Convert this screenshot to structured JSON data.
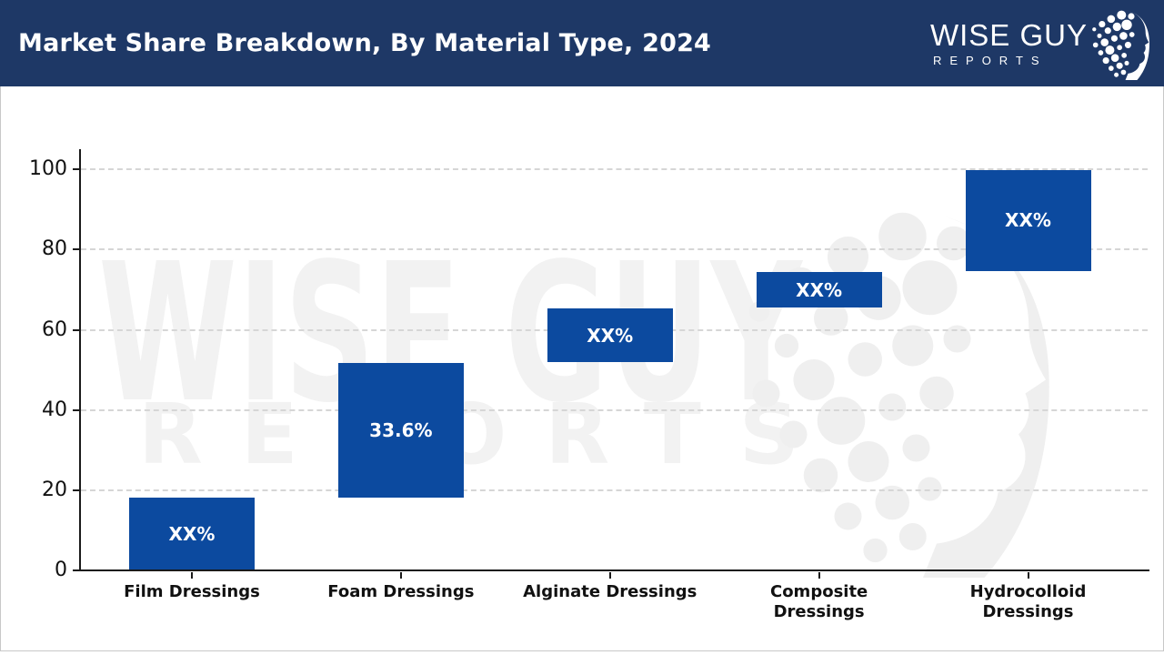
{
  "header": {
    "title": "Market Share Breakdown, By Material Type, 2024",
    "logo": {
      "name": "WISE GUY",
      "tagline": "REPORTS"
    }
  },
  "watermark": {
    "line1": "WISE GUY",
    "line2": "REPORTS"
  },
  "chart_data": {
    "type": "bar",
    "subtype": "waterfall-floating-bars",
    "title": "Market Share Breakdown, By Material Type, 2024",
    "xlabel": "",
    "ylabel": "",
    "ylim": [
      0,
      105
    ],
    "yticks": [
      0,
      20,
      40,
      60,
      80,
      100
    ],
    "grid": "horizontal-dashed",
    "legend": "none",
    "bar_color": "#0c4a9f",
    "bar_label_color": "#ffffff",
    "categories": [
      "Film Dressings",
      "Foam Dressings",
      "Alginate Dressings",
      "Composite Dressings",
      "Hydrocolloid Dressings"
    ],
    "category_label_lines": [
      [
        "Film Dressings"
      ],
      [
        "Foam Dressings"
      ],
      [
        "Alginate Dressings"
      ],
      [
        "Composite",
        "Dressings"
      ],
      [
        "Hydrocolloid",
        "Dressings"
      ]
    ],
    "segments": [
      {
        "category": "Film Dressings",
        "start": 0,
        "end": 18.2,
        "label": "XX%"
      },
      {
        "category": "Foam Dressings",
        "start": 18.2,
        "end": 51.8,
        "label": "33.6%"
      },
      {
        "category": "Alginate Dressings",
        "start": 51.9,
        "end": 65.3,
        "label": "XX%"
      },
      {
        "category": "Composite Dressings",
        "start": 65.6,
        "end": 74.4,
        "label": "XX%"
      },
      {
        "category": "Hydrocolloid Dressings",
        "start": 74.7,
        "end": 99.8,
        "label": "XX%"
      }
    ]
  },
  "colors": {
    "header_bg": "#1e3866",
    "axis": "#1a1a1a",
    "gridline": "#d6d6d6",
    "watermark": "#f2f2f2"
  }
}
